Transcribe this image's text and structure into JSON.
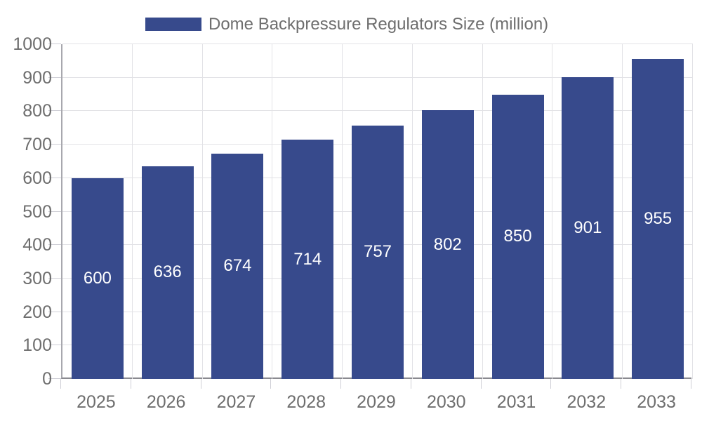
{
  "chart_data": {
    "type": "bar",
    "title": "Dome Backpressure Regulators Size (million)",
    "legend_position": "top",
    "categories": [
      "2025",
      "2026",
      "2027",
      "2028",
      "2029",
      "2030",
      "2031",
      "2032",
      "2033"
    ],
    "series": [
      {
        "name": "Dome Backpressure Regulators Size (million)",
        "values": [
          600,
          636,
          674,
          714,
          757,
          802,
          850,
          901,
          955
        ]
      }
    ],
    "xlabel": "",
    "ylabel": "",
    "ylim": [
      0,
      1000
    ],
    "ytick_step": 100,
    "grid": true,
    "value_labels": "inside-center",
    "colors": {
      "bar": "#374a8c",
      "bar_value_text": "#ffffff",
      "tick_text": "#6e6e6e",
      "legend_text": "#6e6e6e",
      "grid_line": "#e2e2e6",
      "tick_mark": "#cfcfd6",
      "axis_line_left": "#a8a8ae",
      "axis_line_bottom": "#8a8a90",
      "background": "#ffffff"
    }
  }
}
